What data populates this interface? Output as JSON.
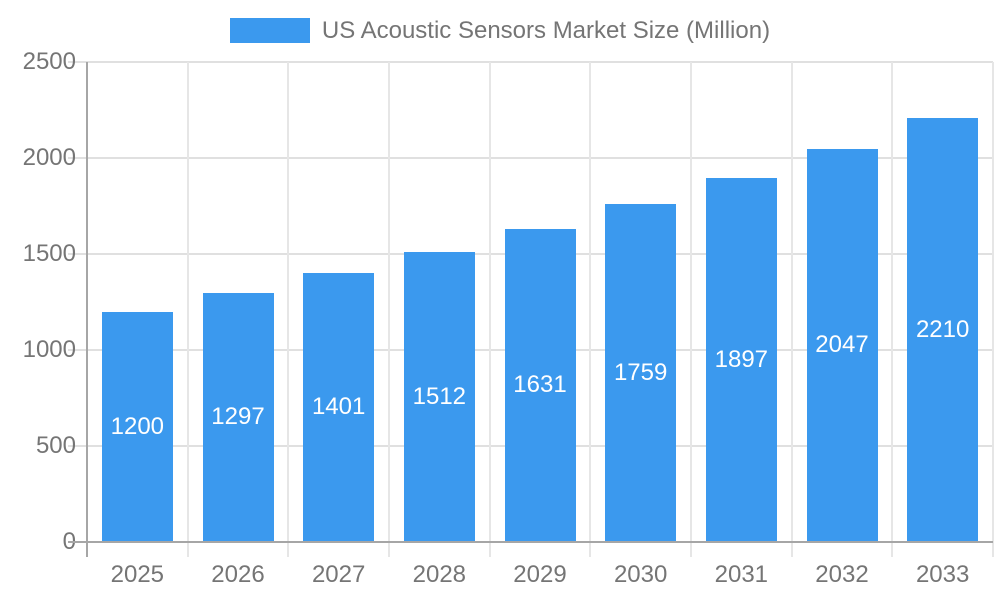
{
  "chart_data": {
    "type": "bar",
    "title": "US Acoustic Sensors Market Size (Million)",
    "categories": [
      "2025",
      "2026",
      "2027",
      "2028",
      "2029",
      "2030",
      "2031",
      "2032",
      "2033"
    ],
    "series": [
      {
        "name": "US Acoustic Sensors Market Size (Million)",
        "values": [
          1200,
          1297,
          1401,
          1512,
          1631,
          1759,
          1897,
          2047,
          2210
        ]
      }
    ],
    "value_labels_shown": true,
    "xlabel": "",
    "ylabel": "",
    "ylim": [
      0,
      2500
    ],
    "yticks": [
      0,
      500,
      1000,
      1500,
      2000,
      2500
    ],
    "grid": true,
    "legend_position": "top-center",
    "colors": {
      "bar": "#3b99ee",
      "bar_value_label": "#ffffff",
      "axis_text": "#757575",
      "gridline_h": "#e0e0e0",
      "gridline_v": "#e6e6e6",
      "axis_line": "#a6a6a6",
      "background": "#ffffff"
    }
  }
}
